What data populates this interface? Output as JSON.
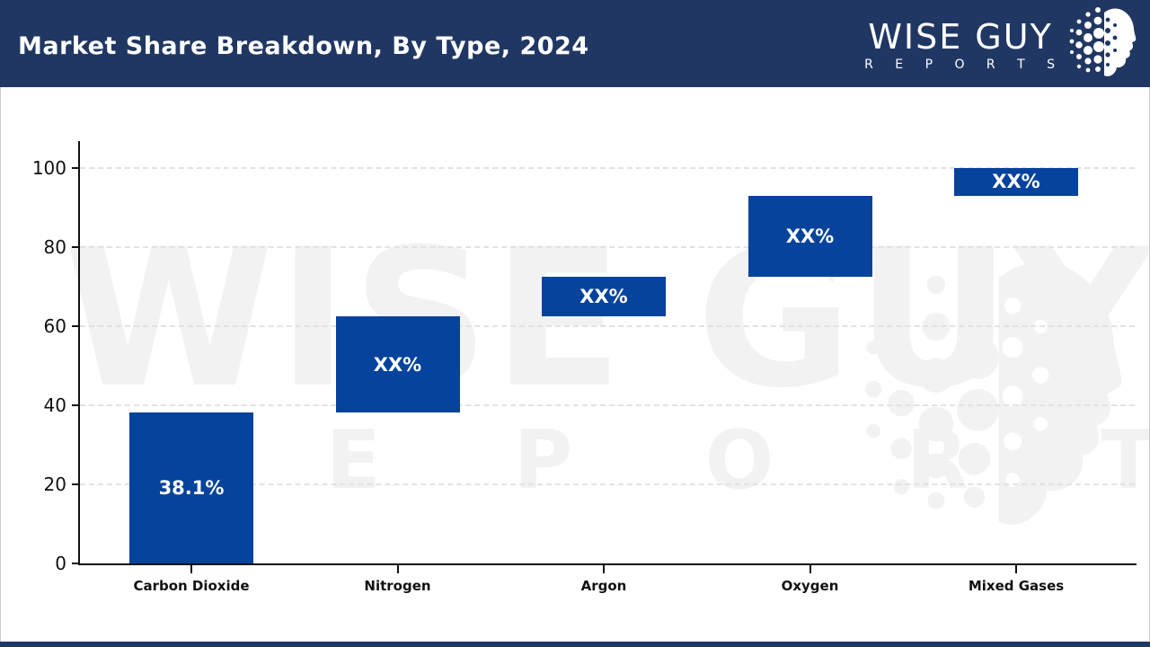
{
  "header": {
    "title": "Market Share Breakdown, By Type, 2024",
    "bg_color": "#213763",
    "logo": {
      "line1": "WISE GUY",
      "line2": "R E P O R T S"
    }
  },
  "watermark": {
    "line1": "WISE GUY",
    "line2": "R E P O R T S",
    "color": "#f2f2f2"
  },
  "chart_data": {
    "type": "bar",
    "subtype": "waterfall",
    "title": "Market Share Breakdown, By Type, 2024",
    "categories": [
      "Carbon Dioxide",
      "Nitrogen",
      "Argon",
      "Oxygen",
      "Mixed Gases"
    ],
    "segments": [
      {
        "category": "Carbon Dioxide",
        "start": 0,
        "end": 38.1,
        "label": "38.1%"
      },
      {
        "category": "Nitrogen",
        "start": 38.1,
        "end": 62.5,
        "label": "XX%"
      },
      {
        "category": "Argon",
        "start": 62.5,
        "end": 72.5,
        "label": "XX%"
      },
      {
        "category": "Oxygen",
        "start": 72.5,
        "end": 93,
        "label": "XX%"
      },
      {
        "category": "Mixed Gases",
        "start": 93,
        "end": 100,
        "label": "XX%"
      }
    ],
    "y_ticks": [
      0,
      20,
      40,
      60,
      80,
      100
    ],
    "ylim": [
      0,
      107
    ],
    "grid": "dashed-horizontal",
    "legend": "none",
    "bar_color": "#05439c",
    "bar_label_color": "#ffffff",
    "axis_color": "#111111",
    "grid_color": "#e2e2e2"
  }
}
